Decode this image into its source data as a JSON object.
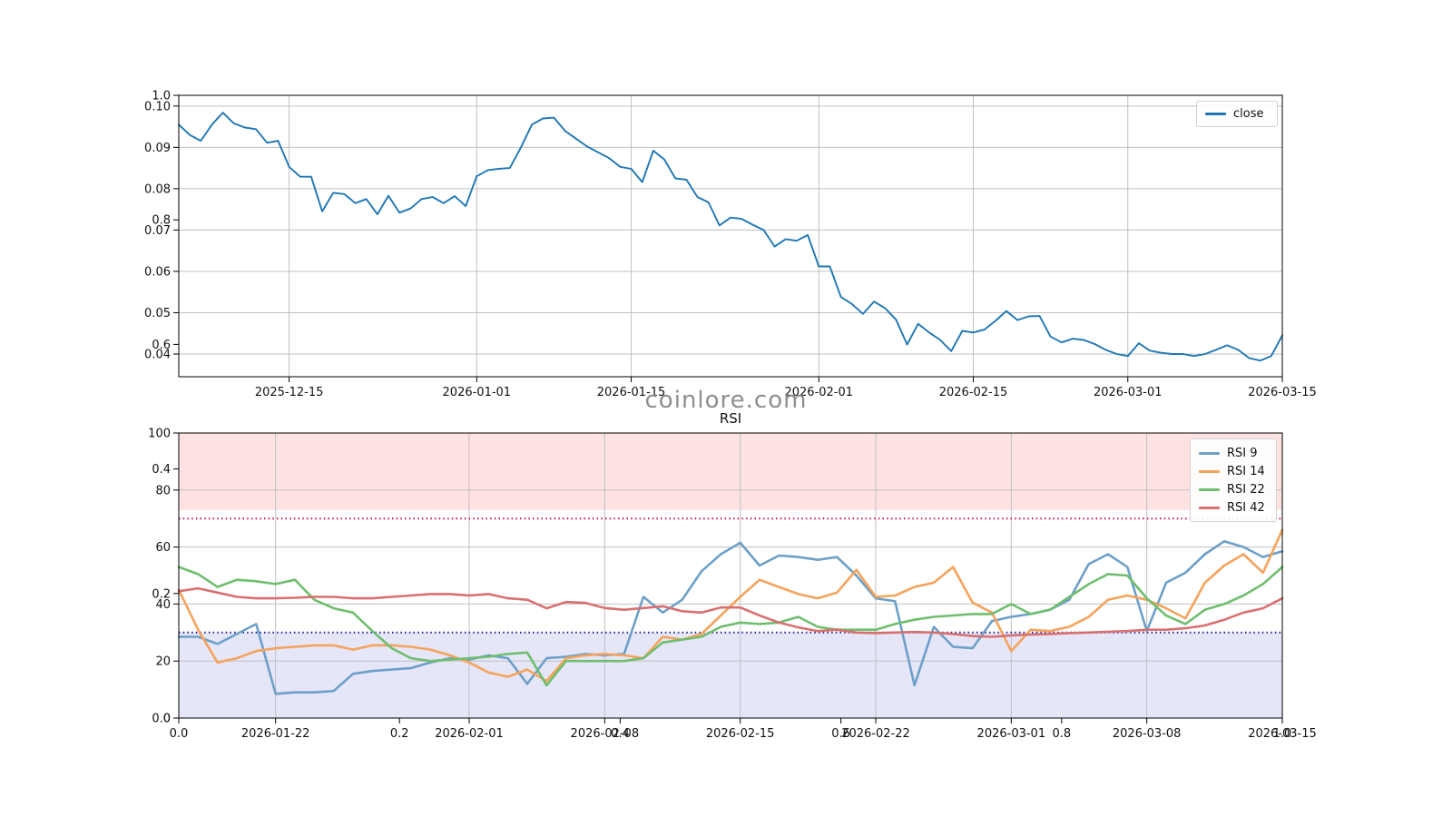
{
  "watermark": "coinlore.com",
  "figure_axis_overlay": {
    "y_labels": [
      "1.0",
      "0.8",
      "0.6",
      "0.4",
      "0.2",
      "0.0"
    ],
    "x_labels": [
      "0.0",
      "0.2",
      "0.4",
      "0.6",
      "0.8",
      "1.0"
    ]
  },
  "chart_data": [
    {
      "id": "price",
      "type": "line",
      "title": "",
      "legend_position": "upper right",
      "grid": true,
      "x_tick_labels": [
        "2025-12-15",
        "2026-01-01",
        "2026-01-15",
        "2026-02-01",
        "2026-02-15",
        "2026-03-01",
        "2026-03-15"
      ],
      "x_tick_indices": [
        10,
        27,
        41,
        58,
        72,
        86,
        100
      ],
      "y_tick_labels": [
        "0.10",
        "0.09",
        "0.08",
        "0.07",
        "0.06",
        "0.05",
        "0.04"
      ],
      "y_tick_values": [
        0.1,
        0.09,
        0.08,
        0.07,
        0.06,
        0.05,
        0.04
      ],
      "ylim": [
        0.0345,
        0.1026
      ],
      "series": [
        {
          "name": "close",
          "color": "#1f77b4",
          "values": [
            0.0955,
            0.093,
            0.0916,
            0.0955,
            0.0984,
            0.0958,
            0.0948,
            0.0944,
            0.0911,
            0.0916,
            0.0853,
            0.0829,
            0.0829,
            0.0745,
            0.079,
            0.0787,
            0.0765,
            0.0775,
            0.0738,
            0.0783,
            0.0742,
            0.0752,
            0.0775,
            0.078,
            0.0765,
            0.0782,
            0.0758,
            0.083,
            0.0845,
            0.0848,
            0.085,
            0.09,
            0.0955,
            0.097,
            0.0972,
            0.094,
            0.0921,
            0.0902,
            0.0888,
            0.0874,
            0.0853,
            0.0848,
            0.0816,
            0.0892,
            0.0871,
            0.0825,
            0.0822,
            0.078,
            0.0767,
            0.0711,
            0.073,
            0.0727,
            0.0713,
            0.07,
            0.066,
            0.0678,
            0.0674,
            0.0688,
            0.0612,
            0.0612,
            0.0538,
            0.0521,
            0.0497,
            0.0527,
            0.0511,
            0.0483,
            0.0423,
            0.0473,
            0.0452,
            0.0434,
            0.0407,
            0.0456,
            0.0452,
            0.0459,
            0.048,
            0.0504,
            0.0482,
            0.0491,
            0.0492,
            0.0442,
            0.0428,
            0.0437,
            0.0434,
            0.0424,
            0.041,
            0.04,
            0.0395,
            0.0426,
            0.0408,
            0.0403,
            0.04,
            0.04,
            0.0395,
            0.04,
            0.041,
            0.0421,
            0.041,
            0.039,
            0.0384,
            0.0395,
            0.0445
          ]
        }
      ]
    },
    {
      "id": "rsi",
      "type": "line",
      "title": "RSI",
      "legend_position": "upper right",
      "grid": true,
      "x_tick_labels": [
        "2026-01-22",
        "2026-02-01",
        "2026-02-08",
        "2026-02-15",
        "2026-02-22",
        "2026-03-01",
        "2026-03-08",
        "2026-03-15"
      ],
      "x_tick_indices": [
        5,
        15,
        22,
        29,
        36,
        43,
        50,
        57
      ],
      "y_tick_labels": [
        "100",
        "80",
        "60",
        "40",
        "20",
        "0"
      ],
      "y_tick_values": [
        100,
        80,
        60,
        40,
        20,
        0
      ],
      "ylim": [
        0,
        100
      ],
      "bands": [
        {
          "name": "overbought-band",
          "from": 73,
          "to": 100,
          "color": "rgba(255,60,60,0.14)"
        },
        {
          "name": "oversold-band",
          "from": 0,
          "to": 30,
          "color": "rgba(90,90,215,0.15)"
        }
      ],
      "threshold_lines": [
        {
          "name": "overbought-70",
          "y": 70,
          "color": "#d4113c"
        },
        {
          "name": "oversold-30",
          "y": 30,
          "color": "#1c1c9e"
        }
      ],
      "series": [
        {
          "name": "RSI 9",
          "color": "#6da0c8",
          "values": [
            28.5,
            28.5,
            26,
            29.5,
            33,
            8.5,
            9,
            9,
            9.5,
            15.5,
            16.5,
            17,
            17.5,
            19.5,
            21,
            20.5,
            22,
            21,
            12,
            21,
            21.5,
            22.5,
            22,
            22.5,
            42.5,
            37,
            41.5,
            51.5,
            57.5,
            61.5,
            53.5,
            57,
            56.5,
            55.5,
            56.5,
            50,
            42,
            41,
            11.5,
            32,
            25,
            24.5,
            34,
            35.5,
            36.5,
            38,
            41.5,
            54,
            57.5,
            53,
            30.5,
            47.5,
            51,
            57.5,
            62,
            60,
            56.5,
            58.5
          ]
        },
        {
          "name": "RSI 14",
          "color": "#f5a35c",
          "values": [
            45,
            31,
            19.5,
            21,
            23.5,
            24.5,
            25,
            25.5,
            25.5,
            24,
            25.5,
            25.5,
            25,
            24,
            22,
            19.5,
            16,
            14.5,
            17,
            13,
            21,
            22,
            22.5,
            22,
            21,
            28.5,
            27.5,
            29.5,
            36,
            42.5,
            48.5,
            46,
            43.5,
            42,
            44,
            52,
            42.5,
            43,
            46,
            47.5,
            53,
            40.5,
            37,
            23.5,
            31,
            30.5,
            32,
            35.5,
            41.5,
            43,
            41.5,
            38.5,
            35,
            47.5,
            53.5,
            57.5,
            51,
            66
          ]
        },
        {
          "name": "RSI 22",
          "color": "#6fbe6f",
          "values": [
            53,
            50.5,
            46,
            48.5,
            48,
            47,
            48.5,
            41.5,
            38.5,
            37,
            30.5,
            24.5,
            21,
            20,
            20.5,
            21,
            21.5,
            22.5,
            23,
            11.5,
            20,
            20,
            20,
            20,
            21,
            26.5,
            27.5,
            28.5,
            32,
            33.5,
            33,
            33.5,
            35.5,
            32,
            31,
            31,
            31,
            33,
            34.5,
            35.5,
            36,
            36.5,
            36.5,
            40,
            36.5,
            38,
            42.5,
            47,
            50.5,
            50,
            42,
            36,
            33,
            38,
            40,
            43,
            47,
            53
          ]
        },
        {
          "name": "RSI 42",
          "color": "#d97070",
          "values": [
            44.5,
            45.5,
            44,
            42.5,
            42,
            42,
            42.2,
            42.5,
            42.5,
            42,
            42,
            42.5,
            43,
            43.5,
            43.5,
            43,
            43.5,
            42,
            41.5,
            38.5,
            40.7,
            40.4,
            38.6,
            38,
            38.6,
            39.2,
            37.5,
            37,
            38.8,
            38.8,
            36,
            33.5,
            31.8,
            30.5,
            31,
            30,
            29.8,
            30,
            30.2,
            30,
            29.5,
            28.8,
            28.5,
            29,
            29.3,
            29.5,
            29.8,
            30,
            30.3,
            30.5,
            31,
            31,
            31.5,
            32.5,
            34.5,
            37,
            38.5,
            42
          ]
        }
      ]
    }
  ]
}
